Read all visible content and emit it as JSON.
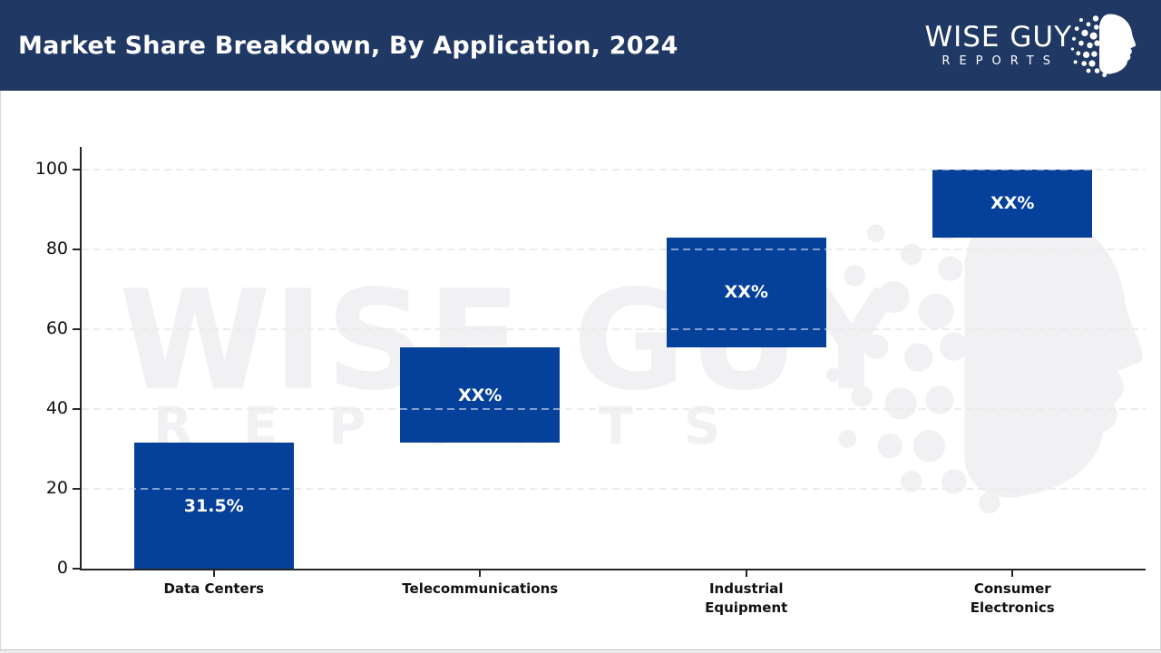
{
  "theme": {
    "header_bg": "#203864",
    "bar_blue": "#05409a",
    "grid_gray": "#d9d9d9",
    "axis_black": "#262626",
    "watermark_gray": "#f1f1f4"
  },
  "header": {
    "title": "Market Share Breakdown, By Application, 2024",
    "logo": {
      "line1": "WISE GUY",
      "line2": "REPORTS"
    }
  },
  "watermark": {
    "line1": "WISE GUY",
    "line2": "REPORTS"
  },
  "chart_data": {
    "type": "bar",
    "subtype": "waterfall-breakdown",
    "title": "Market Share Breakdown, By Application, 2024",
    "xlabel": "",
    "ylabel": "",
    "ylim": [
      0,
      100
    ],
    "yticks": [
      0,
      20,
      40,
      60,
      80,
      100
    ],
    "grid": "horizontal-dashed",
    "legend": "none",
    "categories": [
      "Data Centers",
      "Telecommunications",
      "Industrial Equipment",
      "Consumer Electronics"
    ],
    "segments": [
      {
        "category": "Data Centers",
        "label_lines": [
          "Data Centers"
        ],
        "start": 0,
        "end": 31.5,
        "bar_label": "31.5%"
      },
      {
        "category": "Telecommunications",
        "label_lines": [
          "Telecommunications"
        ],
        "start": 31.5,
        "end": 55.5,
        "bar_label": "XX%"
      },
      {
        "category": "Industrial Equipment",
        "label_lines": [
          "Industrial",
          "Equipment"
        ],
        "start": 55.5,
        "end": 83,
        "bar_label": "XX%"
      },
      {
        "category": "Consumer Electronics",
        "label_lines": [
          "Consumer",
          "Electronics"
        ],
        "start": 83,
        "end": 100,
        "bar_label": "XX%"
      }
    ]
  }
}
